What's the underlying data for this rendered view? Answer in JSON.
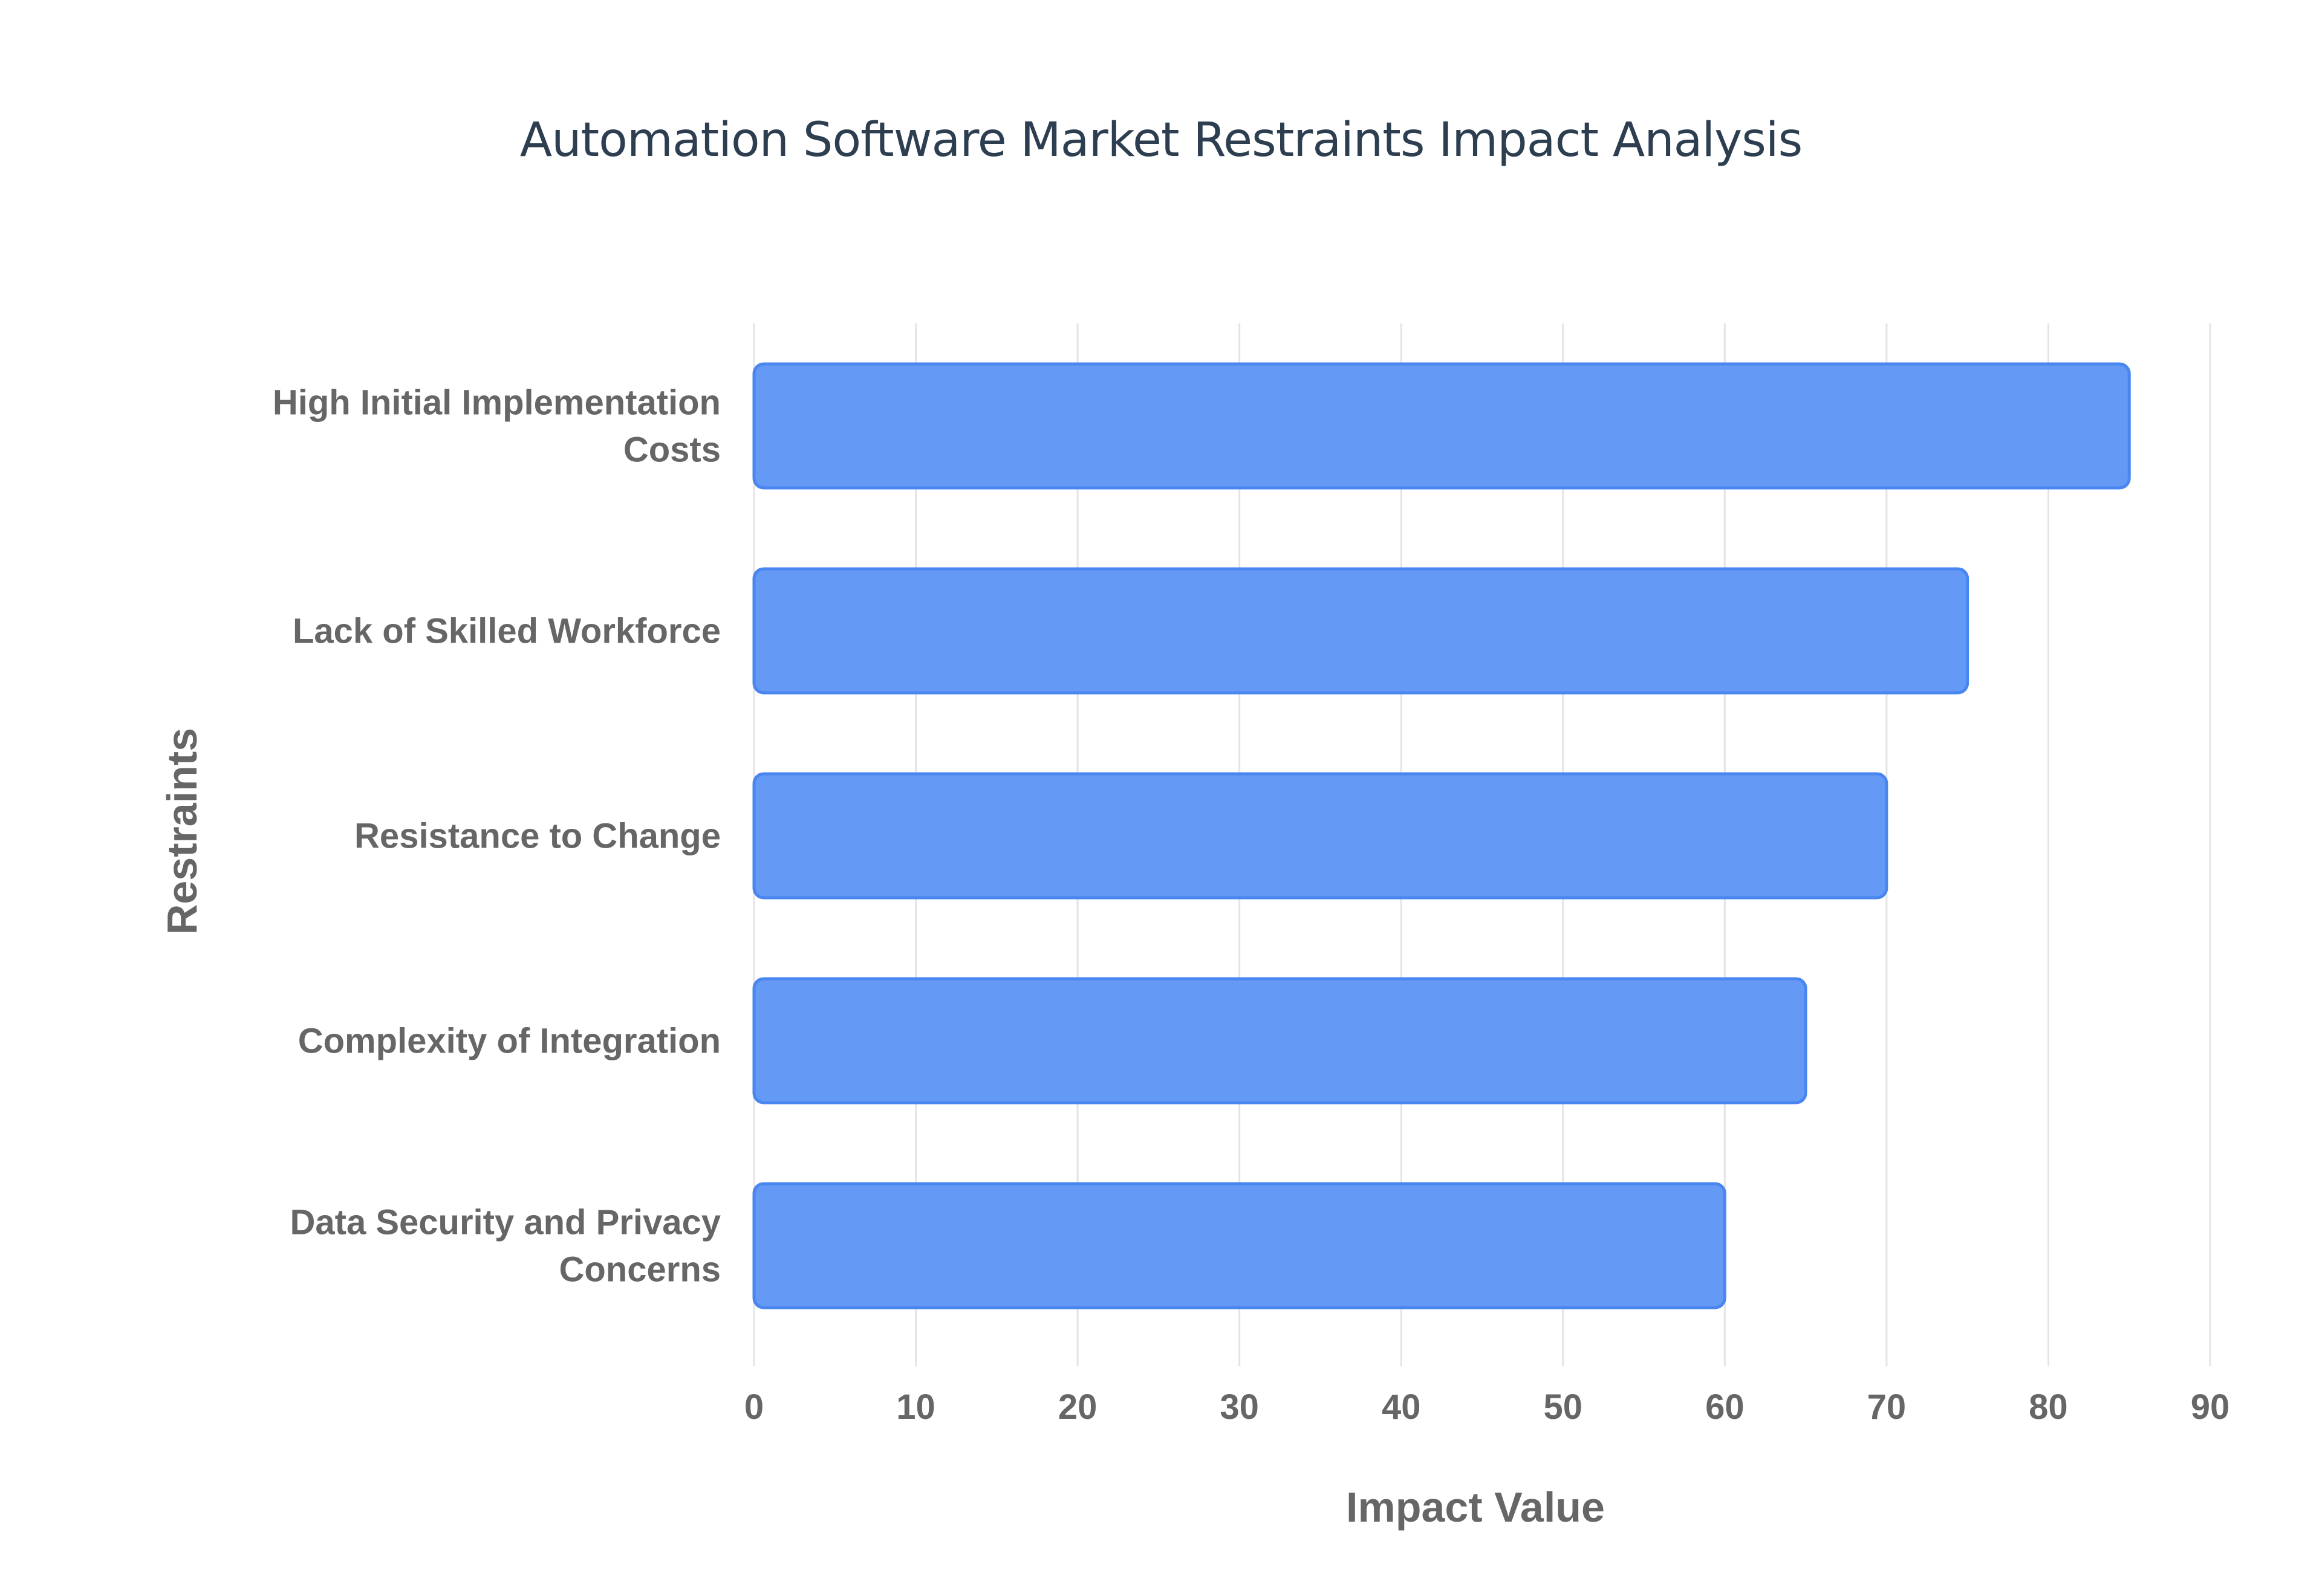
{
  "chart_data": {
    "type": "bar",
    "orientation": "horizontal",
    "title": "Automation Software Market Restraints Impact Analysis",
    "xlabel": "Impact Value",
    "ylabel": "Restraints",
    "categories": [
      "High Initial Implementation Costs",
      "Lack of Skilled Workforce",
      "Resistance to Change",
      "Complexity of Integration",
      "Data Security and Privacy Concerns"
    ],
    "values": [
      85,
      75,
      70,
      65,
      60
    ],
    "xlim": [
      0,
      90
    ],
    "xticks": [
      "0",
      "10",
      "20",
      "30",
      "40",
      "50",
      "60",
      "70",
      "80",
      "90"
    ],
    "grid": true,
    "legend": "none",
    "colors": {
      "bar_fill": "#6499f5",
      "bar_border": "#4a86f0",
      "title": "#2c3e50",
      "labels": "#666666",
      "grid": "#e4e4e4"
    }
  }
}
